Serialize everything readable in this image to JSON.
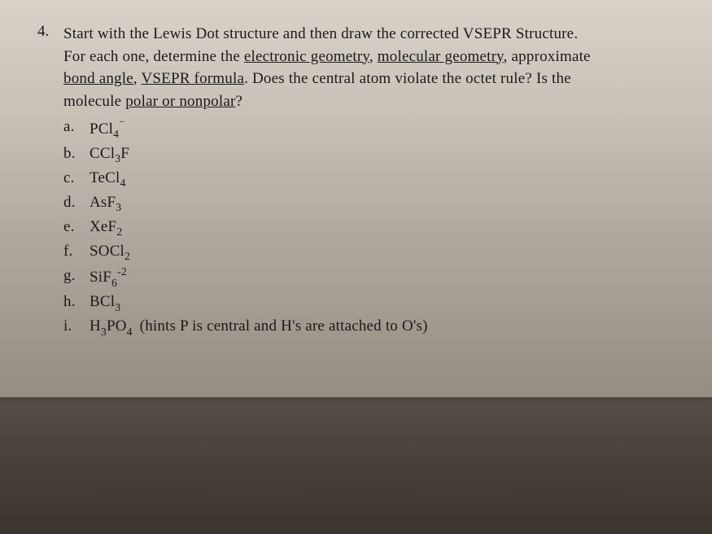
{
  "question": {
    "number": "4.",
    "lines": [
      {
        "parts": [
          {
            "t": "Start with the Lewis Dot structure and then draw the corrected VSEPR Structure."
          }
        ]
      },
      {
        "parts": [
          {
            "t": "For each one, determine the "
          },
          {
            "t": "electronic geometry",
            "u": true
          },
          {
            "t": ", "
          },
          {
            "t": "molecular geometry",
            "u": true
          },
          {
            "t": ", approximate"
          }
        ]
      },
      {
        "parts": [
          {
            "t": "bond angle",
            "u": true
          },
          {
            "t": ", "
          },
          {
            "t": "VSEPR formula",
            "u": true
          },
          {
            "t": ". Does the central atom violate the octet rule? Is the"
          }
        ]
      },
      {
        "parts": [
          {
            "t": "molecule "
          },
          {
            "t": "polar or nonpolar",
            "u": true
          },
          {
            "t": "?"
          }
        ]
      }
    ],
    "items": [
      {
        "marker": "a.",
        "formula": [
          {
            "t": "PCl"
          },
          {
            "t": "4",
            "sub": true
          },
          {
            "t": "⁻",
            "sup": true
          }
        ]
      },
      {
        "marker": "b.",
        "formula": [
          {
            "t": "CCl"
          },
          {
            "t": "3",
            "sub": true
          },
          {
            "t": "F"
          }
        ]
      },
      {
        "marker": "c.",
        "formula": [
          {
            "t": "TeCl"
          },
          {
            "t": "4",
            "sub": true
          }
        ]
      },
      {
        "marker": "d.",
        "formula": [
          {
            "t": "AsF"
          },
          {
            "t": "3",
            "sub": true
          }
        ]
      },
      {
        "marker": "e.",
        "formula": [
          {
            "t": "XeF"
          },
          {
            "t": "2",
            "sub": true
          }
        ]
      },
      {
        "marker": "f.",
        "formula": [
          {
            "t": "SOCl"
          },
          {
            "t": "2",
            "sub": true
          }
        ]
      },
      {
        "marker": "g.",
        "formula": [
          {
            "t": "SiF"
          },
          {
            "t": "6",
            "sub": true
          },
          {
            "t": "-2",
            "sup": true
          }
        ]
      },
      {
        "marker": "h.",
        "formula": [
          {
            "t": "BCl"
          },
          {
            "t": "3",
            "sub": true
          }
        ]
      },
      {
        "marker": "i.",
        "formula": [
          {
            "t": "H"
          },
          {
            "t": "3",
            "sub": true
          },
          {
            "t": "PO"
          },
          {
            "t": "4",
            "sub": true
          }
        ],
        "hint": "(hints P is central and H's are attached to O's)"
      }
    ]
  },
  "style": {
    "paper_bg_top": "#d8d2c8",
    "paper_bg_bottom": "#958d82",
    "text_color": "#1a1a1a",
    "font_size_pt": 19
  }
}
